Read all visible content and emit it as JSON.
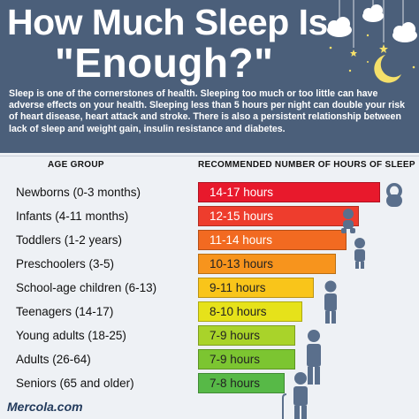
{
  "header": {
    "title_line1": "How Much Sleep Is",
    "title_line2": "\"Enough?\"",
    "intro": "Sleep is one of the cornerstones of health. Sleeping too much or too little can have adverse effects on your health. Sleeping less than 5 hours per night can double your risk of heart disease, heart attack and stroke. There is also a persistent relationship between lack of sleep and weight gain, insulin resistance and diabetes."
  },
  "table": {
    "col_age": "AGE GROUP",
    "col_hours": "RECOMMENDED NUMBER OF HOURS OF SLEEP",
    "rows": [
      {
        "age": "Newborns (0-3 months)",
        "hours": "14-17 hours",
        "min": 14,
        "max": 17,
        "color": "#e8192c"
      },
      {
        "age": "Infants (4-11 months)",
        "hours": "12-15 hours",
        "min": 12,
        "max": 15,
        "color": "#ee3d2d"
      },
      {
        "age": "Toddlers (1-2 years)",
        "hours": "11-14 hours",
        "min": 11,
        "max": 14,
        "color": "#f26a21"
      },
      {
        "age": "Preschoolers (3-5)",
        "hours": "10-13 hours",
        "min": 10,
        "max": 13,
        "color": "#f7941d"
      },
      {
        "age": "School-age children (6-13)",
        "hours": "9-11 hours",
        "min": 9,
        "max": 11,
        "color": "#f9c51a"
      },
      {
        "age": "Teenagers (14-17)",
        "hours": "8-10 hours",
        "min": 8,
        "max": 10,
        "color": "#e6e21a"
      },
      {
        "age": "Young adults (18-25)",
        "hours": "7-9 hours",
        "min": 7,
        "max": 9,
        "color": "#a9d32a"
      },
      {
        "age": "Adults (26-64)",
        "hours": "7-9 hours",
        "min": 7,
        "max": 9,
        "color": "#7cc531"
      },
      {
        "age": "Seniors (65 and older)",
        "hours": "7-8 hours",
        "min": 7,
        "max": 8,
        "color": "#57b947"
      }
    ]
  },
  "footer": {
    "brand": "Mercola.com"
  },
  "icons": [
    "cloud-icon",
    "moon-icon",
    "star-icon",
    "baby-icon",
    "person-icon"
  ]
}
